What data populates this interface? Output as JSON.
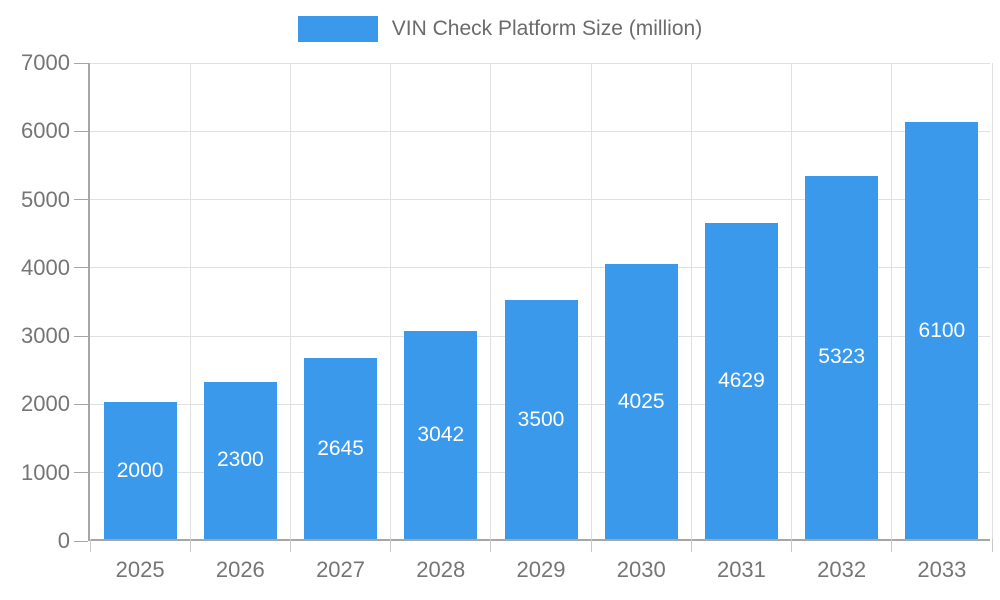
{
  "legend": {
    "label": "VIN Check Platform Size (million)",
    "swatch_color": "#3b99ec"
  },
  "chart_data": {
    "type": "bar",
    "title": "VIN Check Platform Size (million)",
    "categories": [
      "2025",
      "2026",
      "2027",
      "2028",
      "2029",
      "2030",
      "2031",
      "2032",
      "2033"
    ],
    "values": [
      2000,
      2300,
      2645,
      3042,
      3500,
      4025,
      4629,
      5323,
      6100
    ],
    "xlabel": "",
    "ylabel": "",
    "ylim": [
      0,
      7000
    ],
    "yticks": [
      0,
      1000,
      2000,
      3000,
      4000,
      5000,
      6000,
      7000
    ],
    "grid": true,
    "legend_position": "top",
    "bar_color": "#3b99ec",
    "value_label_color": "#ffffff",
    "axis_color": "#a6a6a6",
    "gridline_color": "#e0e0e0",
    "text_color": "#757575"
  }
}
